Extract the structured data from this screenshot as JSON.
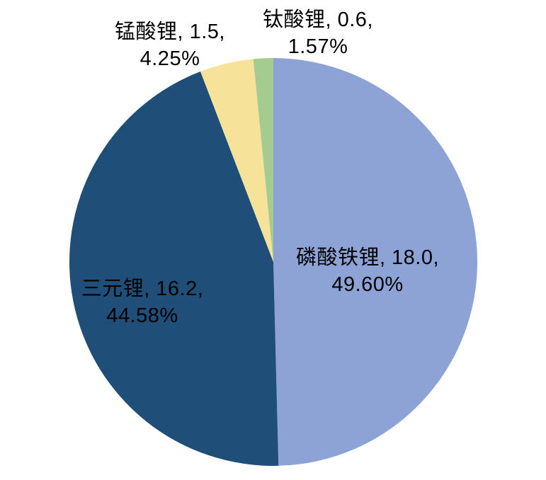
{
  "canvas": {
    "background": "#FFFFFF"
  },
  "chart_data": {
    "type": "pie",
    "title": "",
    "start_angle_deg": 0,
    "direction": "clockwise",
    "total_percent": 100,
    "label_color": "#000000",
    "legend": "none",
    "slices": [
      {
        "key": "lifepo4",
        "name": "磷酸铁锂",
        "value": 18.0,
        "percent": 49.6,
        "color": "#8DA3D6",
        "label_line1": "磷酸铁锂, 18.0,",
        "label_line2": "49.60%",
        "label_placement": "inside"
      },
      {
        "key": "ternary-lithium",
        "name": "三元锂",
        "value": 16.2,
        "percent": 44.58,
        "color": "#1F4E79",
        "label_line1": "三元锂, 16.2,",
        "label_line2": "44.58%",
        "label_placement": "inside"
      },
      {
        "key": "lithium-manganate",
        "name": "锰酸锂",
        "value": 1.5,
        "percent": 4.25,
        "color": "#F7E299",
        "label_line1": "锰酸锂, 1.5,",
        "label_line2": "4.25%",
        "label_placement": "outside"
      },
      {
        "key": "lithium-titanate",
        "name": "钛酸锂",
        "value": 0.6,
        "percent": 1.57,
        "color": "#A5CC90",
        "label_line1": "钛酸锂, 0.6,",
        "label_line2": "1.57%",
        "label_placement": "outside"
      }
    ]
  }
}
